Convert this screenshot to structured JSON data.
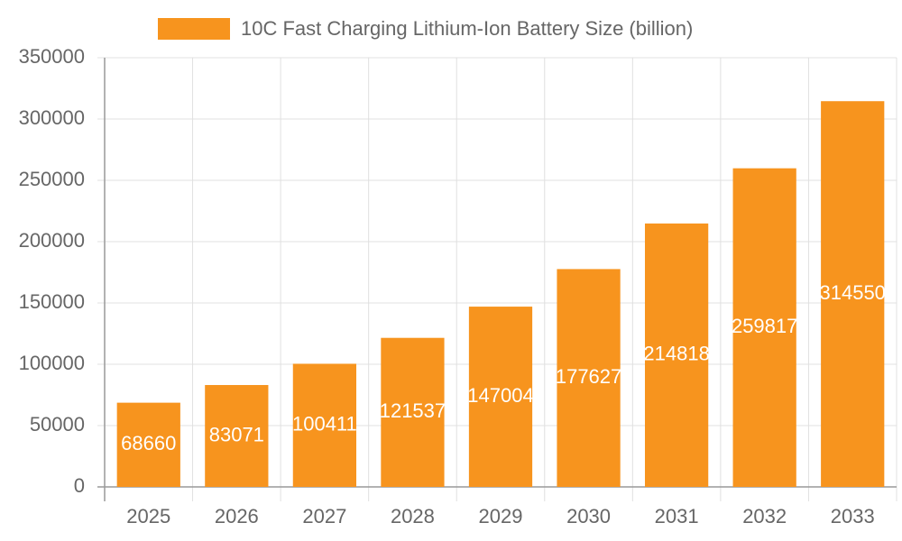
{
  "chart_data": {
    "type": "bar",
    "legend_label": "10C Fast Charging Lithium-Ion Battery Size (billion)",
    "categories": [
      "2025",
      "2026",
      "2027",
      "2028",
      "2029",
      "2030",
      "2031",
      "2032",
      "2033"
    ],
    "values": [
      68660,
      83071,
      100411,
      121537,
      147004,
      177627,
      214818,
      259817,
      314550
    ],
    "color": "#f7941e",
    "ylim": [
      0,
      350000
    ],
    "yticks": [
      0,
      50000,
      100000,
      150000,
      200000,
      250000,
      300000,
      350000
    ],
    "grid": true
  }
}
